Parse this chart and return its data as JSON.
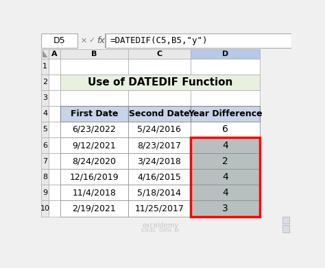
{
  "title": "Use of DATEDIF Function",
  "formula_bar_cell": "D5",
  "formula_bar_formula": "=DATEDIF(C5,B5,\"y\")",
  "col_headers": [
    "A",
    "B",
    "C",
    "D"
  ],
  "row_numbers": [
    "1",
    "2",
    "3",
    "4",
    "5",
    "6",
    "7",
    "8",
    "9",
    "10"
  ],
  "table_headers": [
    "First Date",
    "Second Date",
    "Year Difference"
  ],
  "first_dates": [
    "6/23/2022",
    "9/12/2021",
    "8/24/2020",
    "12/16/2019",
    "11/4/2018",
    "2/19/2021"
  ],
  "second_dates": [
    "5/24/2016",
    "8/23/2017",
    "3/24/2018",
    "4/16/2015",
    "5/18/2014",
    "11/25/2017"
  ],
  "year_diffs": [
    "6",
    "4",
    "2",
    "4",
    "4",
    "3"
  ],
  "header_bg": "#c8d4e8",
  "title_bg": "#e8f0e0",
  "highlight_bg": "#b8bfbf",
  "white_bg": "#ffffff",
  "excel_bg": "#f0f0f0",
  "formula_bar_bg": "#ffffff",
  "col_header_bg": "#e8e8e8",
  "col_header_selected": "#b8c8e8",
  "row_header_bg": "#e8e8e8",
  "red_border": "#ff0000",
  "grid_color": "#aaaaaa",
  "dark_border": "#888888",
  "watermark_color": "#bbbbbb",
  "highlighted_rows": [
    6,
    7,
    8,
    9,
    10
  ]
}
